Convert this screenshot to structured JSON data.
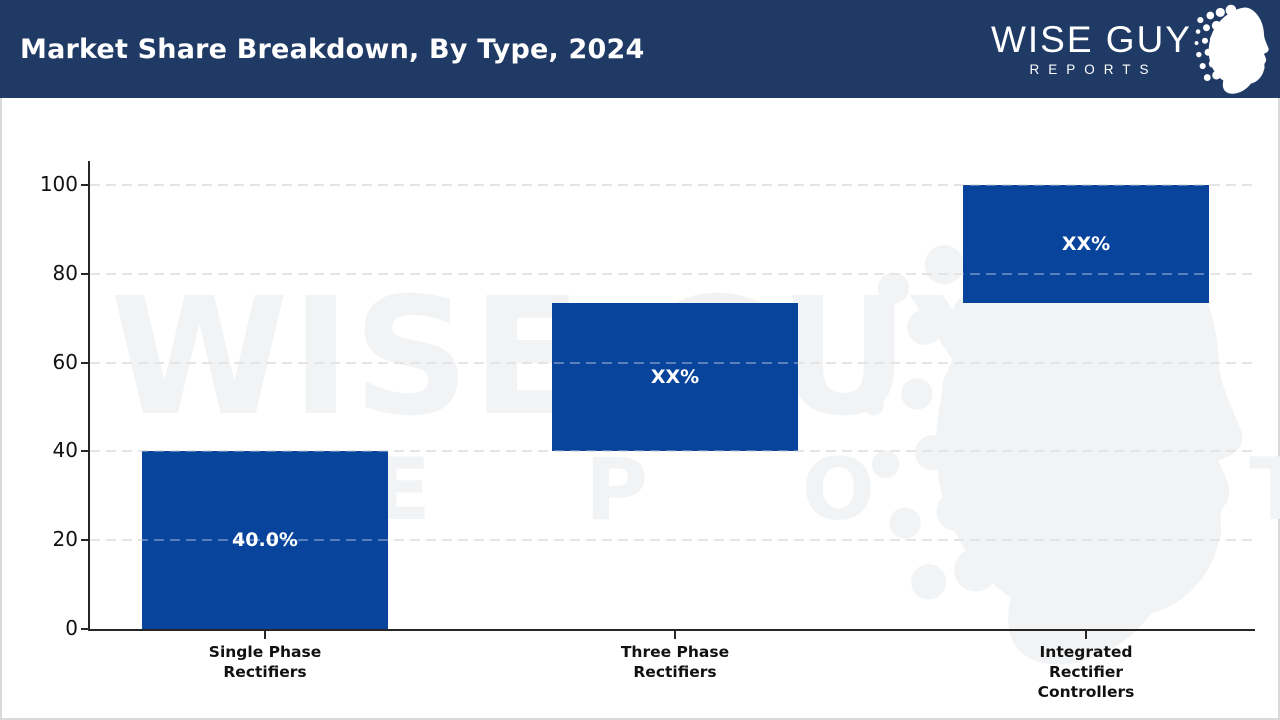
{
  "header": {
    "title": "Market Share Breakdown, By Type, 2024",
    "brand": {
      "line1": "WISE GUY",
      "line2": "REPORTS"
    }
  },
  "watermark": {
    "line1": "WISE GUY",
    "line2": "REPORTS"
  },
  "colors": {
    "header_bg": "#203a66",
    "bar": "#08449c",
    "grid": "#d9d9d9",
    "axis": "#262626",
    "bar_label": "#ffffff",
    "watermark": "#f2f3f5"
  },
  "chart_data": {
    "type": "bar",
    "subtype": "waterfall",
    "title": "Market Share Breakdown, By Type, 2024",
    "categories": [
      [
        "Single Phase",
        "Rectifiers"
      ],
      [
        "Three Phase",
        "Rectifiers"
      ],
      [
        "Integrated",
        "Rectifier",
        "Controllers"
      ]
    ],
    "series": [
      {
        "name": "Market Share (%)",
        "segments": [
          {
            "start": 0,
            "end": 40,
            "label": "40.0%"
          },
          {
            "start": 40,
            "end": 73.5,
            "label": "XX%"
          },
          {
            "start": 73.5,
            "end": 100,
            "label": "XX%"
          }
        ]
      }
    ],
    "xlabel": "",
    "ylabel": "",
    "ylim": [
      0,
      100
    ],
    "yticks": [
      0,
      20,
      40,
      60,
      80,
      100
    ],
    "grid": "dashed-horizontal",
    "legend": "none"
  }
}
